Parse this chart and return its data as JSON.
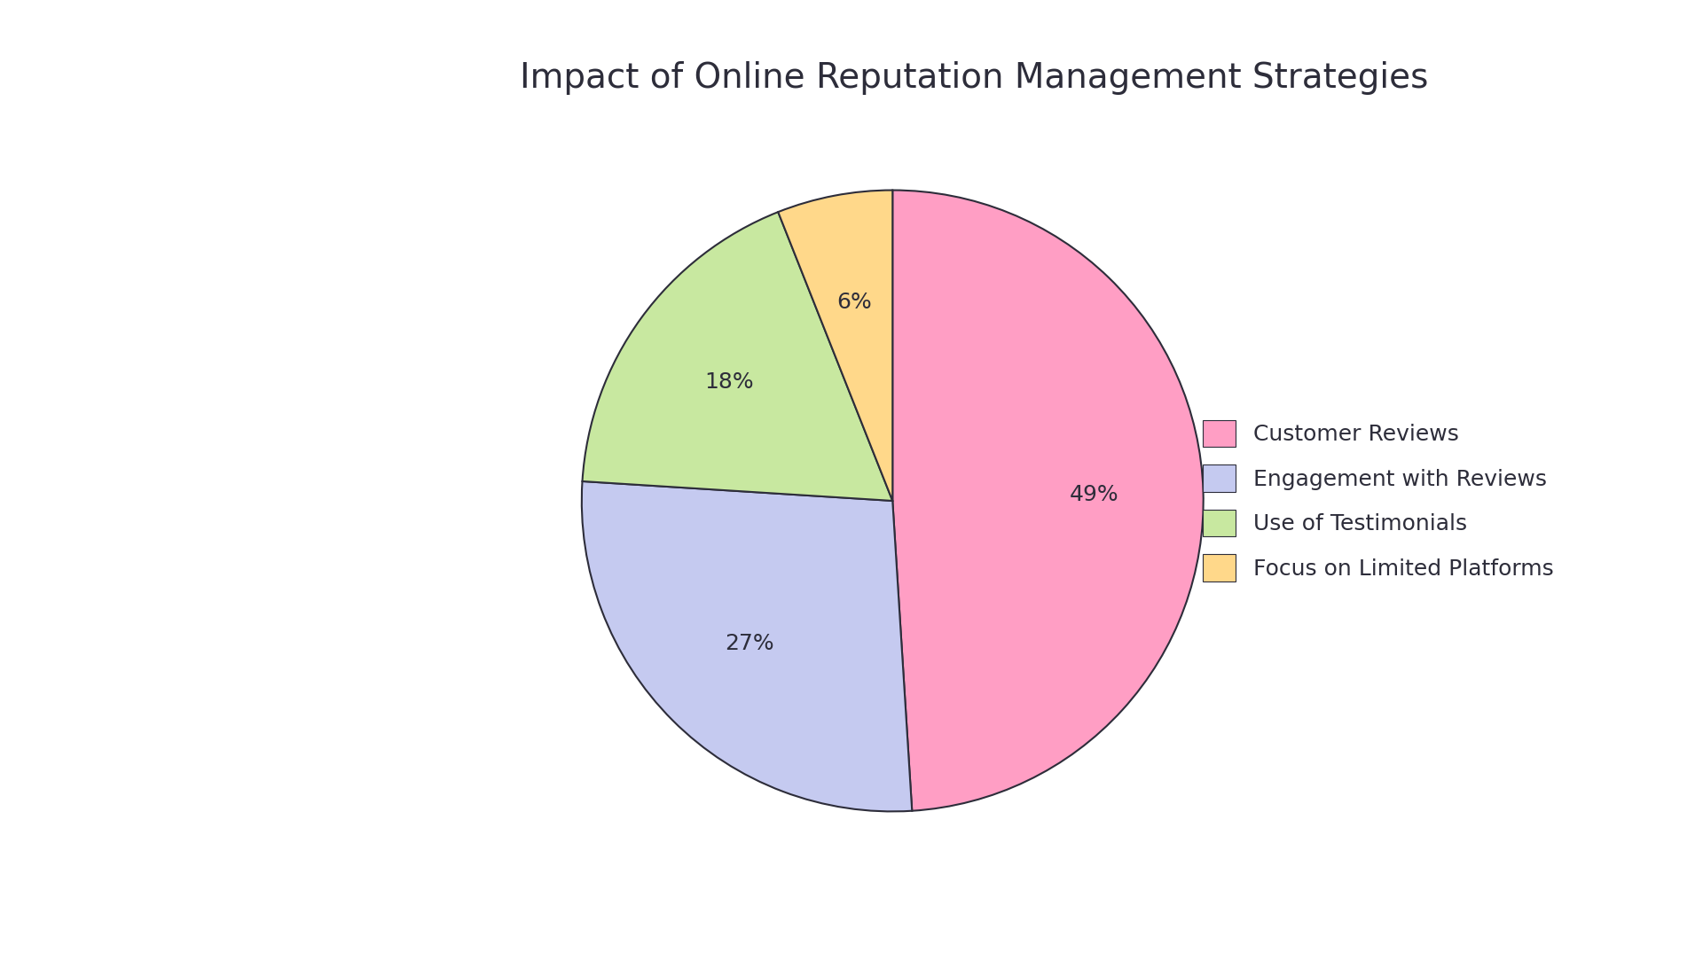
{
  "title": "Impact of Online Reputation Management Strategies",
  "slices": [
    {
      "label": "Customer Reviews",
      "value": 49,
      "color": "#FF9EC4"
    },
    {
      "label": "Engagement with Reviews",
      "value": 27,
      "color": "#C5CAF0"
    },
    {
      "label": "Use of Testimonials",
      "value": 18,
      "color": "#C8E8A0"
    },
    {
      "label": "Focus on Limited Platforms",
      "value": 6,
      "color": "#FFD88A"
    }
  ],
  "edge_color": "#2d2d3a",
  "edge_linewidth": 1.5,
  "background_color": "#ffffff",
  "title_fontsize": 28,
  "label_fontsize": 18,
  "legend_fontsize": 18,
  "startangle": 90
}
